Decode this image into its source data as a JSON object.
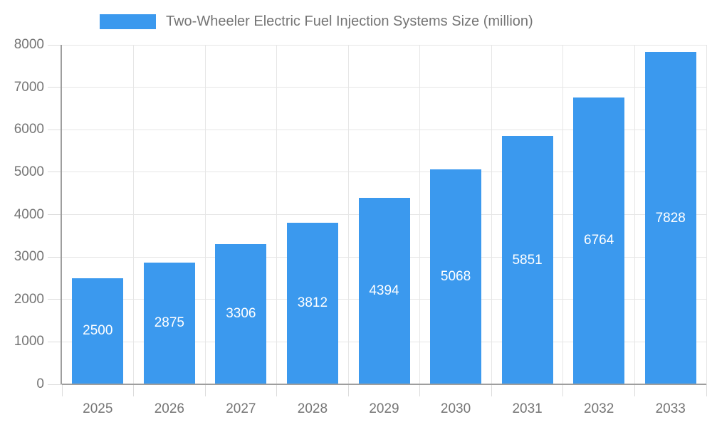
{
  "legend": {
    "label": "Two-Wheeler Electric Fuel Injection Systems Size (million)"
  },
  "chart_data": {
    "type": "bar",
    "title": "Two-Wheeler Electric Fuel Injection Systems Size (million)",
    "categories": [
      "2025",
      "2026",
      "2027",
      "2028",
      "2029",
      "2030",
      "2031",
      "2032",
      "2033"
    ],
    "values": [
      2500,
      2875,
      3306,
      3812,
      4394,
      5068,
      5851,
      6764,
      7828
    ],
    "xlabel": "",
    "ylabel": "",
    "ylim": [
      0,
      8000
    ],
    "yticks": [
      0,
      1000,
      2000,
      3000,
      4000,
      5000,
      6000,
      7000,
      8000
    ],
    "grid": true,
    "legend_position": "top"
  },
  "colors": {
    "bar": "#3B99EE",
    "grid": "#e6e6e6",
    "tick": "#dcdcdc",
    "axis": "#9e9e9e",
    "text": "#757575",
    "bar_label": "#ffffff",
    "background": "#ffffff"
  }
}
